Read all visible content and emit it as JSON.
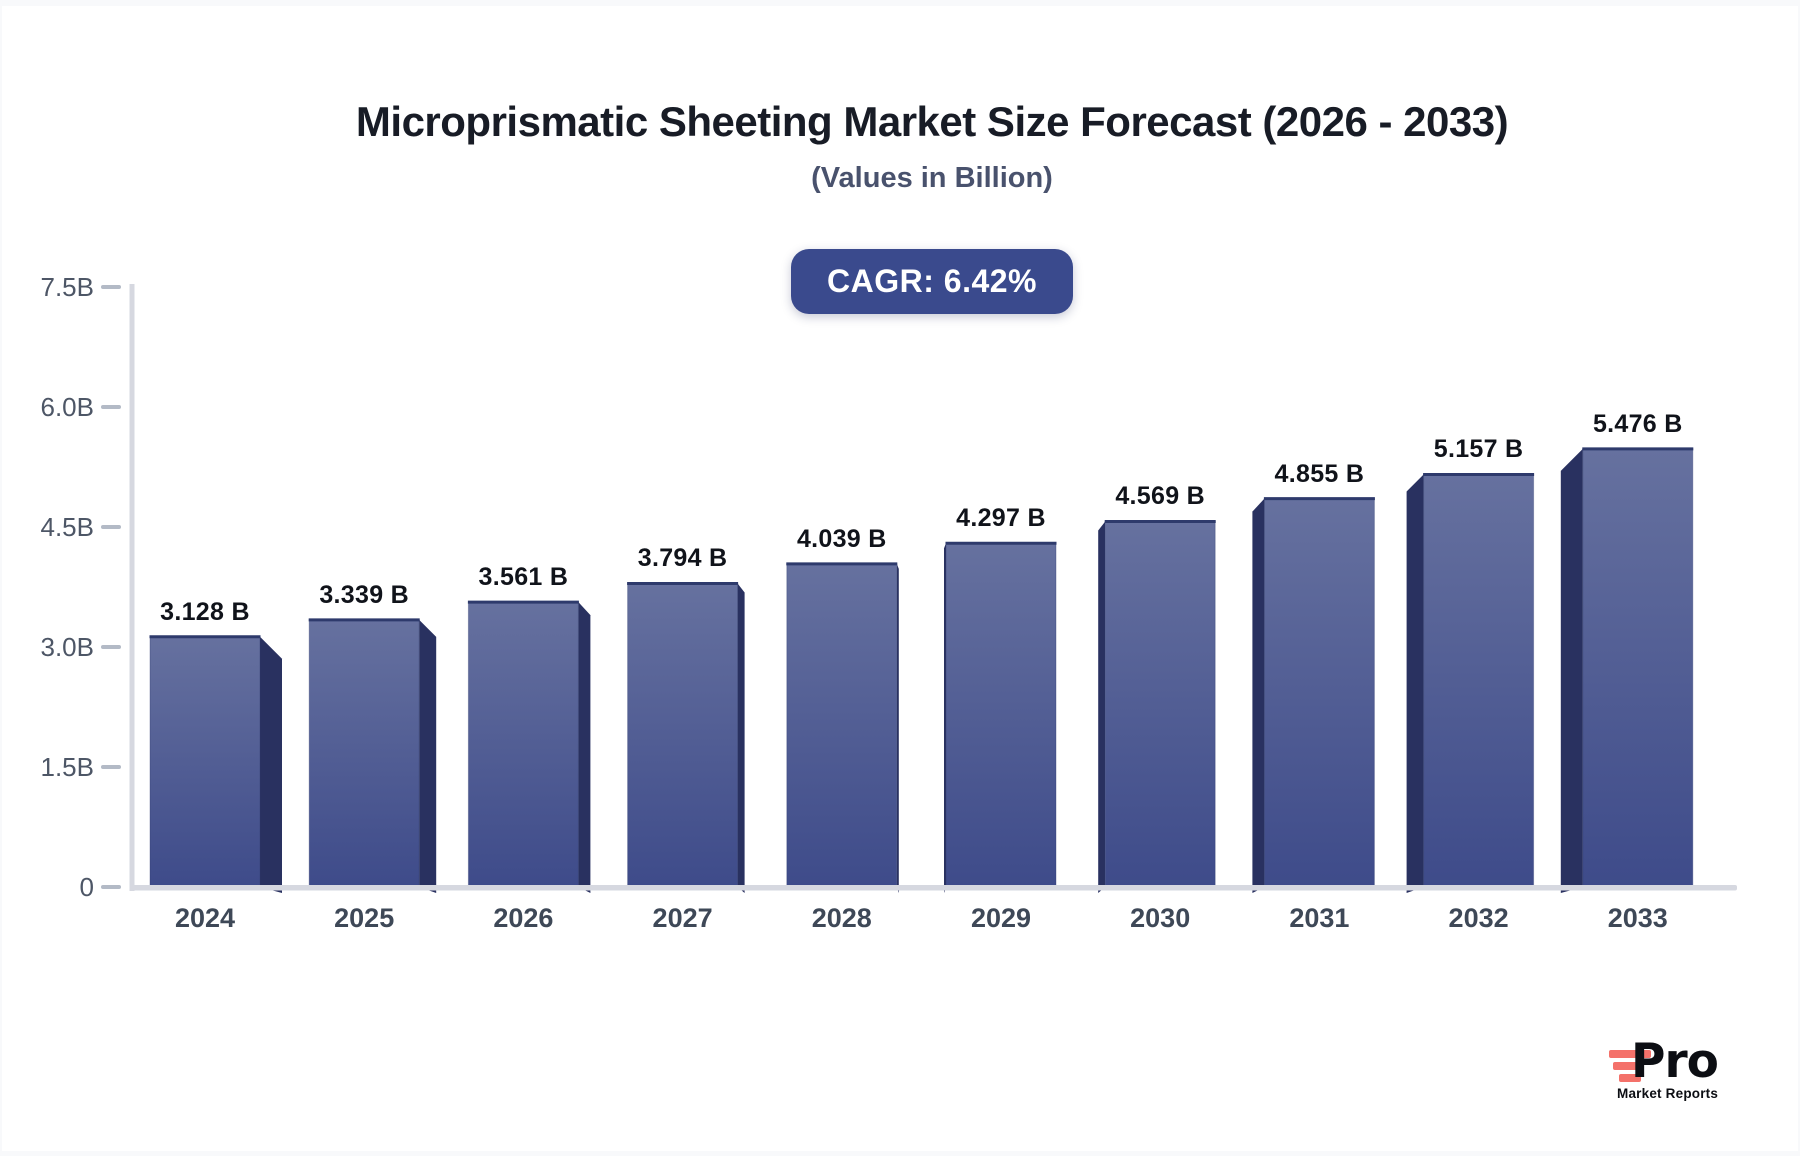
{
  "chart_data": {
    "type": "bar",
    "title": "Microprismatic Sheeting Market Size Forecast (2026 - 2033)",
    "subtitle": "(Values in Billion)",
    "cagr_badge": "CAGR: 6.42%",
    "cagr_value": "6.42%",
    "categories": [
      "2024",
      "2025",
      "2026",
      "2027",
      "2028",
      "2029",
      "2030",
      "2031",
      "2032",
      "2033"
    ],
    "values": [
      3.128,
      3.339,
      3.561,
      3.794,
      4.039,
      4.297,
      4.569,
      4.855,
      5.157,
      5.476
    ],
    "bar_labels": [
      "3.128 B",
      "3.339 B",
      "3.561 B",
      "3.794 B",
      "4.039 B",
      "4.297 B",
      "4.569 B",
      "4.855 B",
      "5.157 B",
      "5.476 B"
    ],
    "unit": "Billion",
    "xlabel": "",
    "ylabel": "",
    "ylim": [
      0,
      7.5
    ],
    "ytick_values": [
      0,
      1.5,
      3.0,
      4.5,
      6.0,
      7.5
    ],
    "ytick_labels": [
      "0",
      "1.5B",
      "3.0B",
      "4.5B",
      "6.0B",
      "7.5B"
    ],
    "grid": false,
    "legend": "none",
    "colors": {
      "bar_face_top": "#66719f",
      "bar_face_bottom": "#3e4b8a",
      "bar_side": "#293160",
      "bar_top_edge": "#2e3a6c",
      "axis_line": "#d6d8e0",
      "tick_dash": "#b3bac6",
      "badge_background": "#3a4a8d",
      "badge_text": "#ffffff",
      "title_text": "#181c26",
      "subtitle_text": "#49526d"
    }
  },
  "branding": {
    "logo_text": "Pro",
    "logo_sub": "Market Reports",
    "logo_accent": "#f4716a"
  }
}
